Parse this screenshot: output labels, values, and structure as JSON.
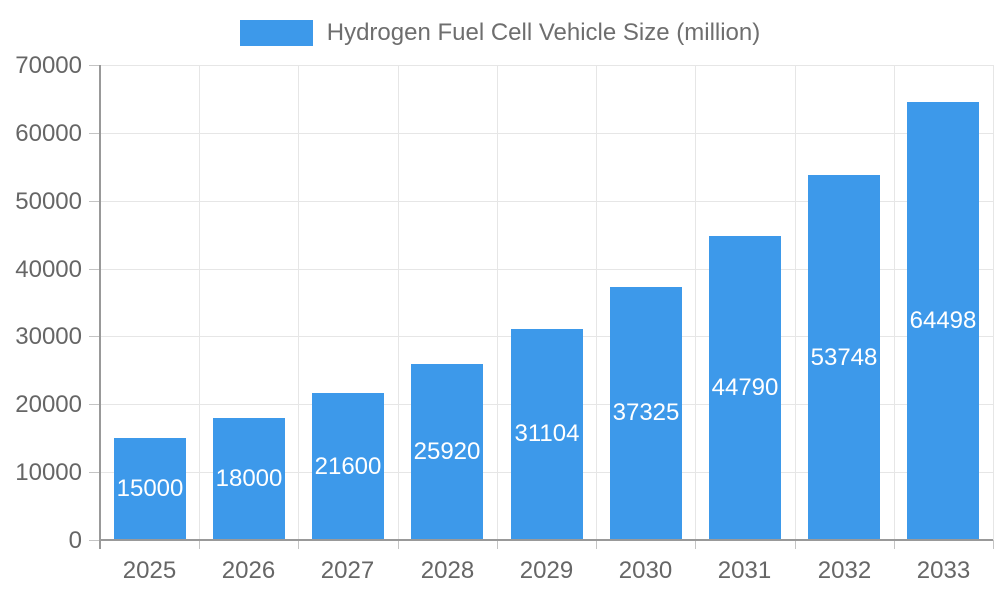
{
  "chart_data": {
    "type": "bar",
    "title": "Hydrogen Fuel Cell Vehicle Size (million)",
    "legend": {
      "position": "top",
      "label": "Hydrogen Fuel Cell Vehicle Size (million)"
    },
    "categories": [
      "2025",
      "2026",
      "2027",
      "2028",
      "2029",
      "2030",
      "2031",
      "2032",
      "2033"
    ],
    "values": [
      15000,
      18000,
      21600,
      25920,
      31104,
      37325,
      44790,
      53748,
      64498
    ],
    "xlabel": "",
    "ylabel": "",
    "ylim": [
      0,
      70000
    ],
    "y_ticks": [
      0,
      10000,
      20000,
      30000,
      40000,
      50000,
      60000,
      70000
    ],
    "grid": true,
    "value_labels": "inside-center",
    "colors": {
      "bar": "#3D99EA",
      "value_label": "#ffffff",
      "axis_line": "#999999",
      "tick": "#c4c4c4",
      "grid": "#e6e6e6",
      "axis_text": "#666666",
      "legend_text": "#6e6e6e",
      "background": "#ffffff"
    }
  }
}
